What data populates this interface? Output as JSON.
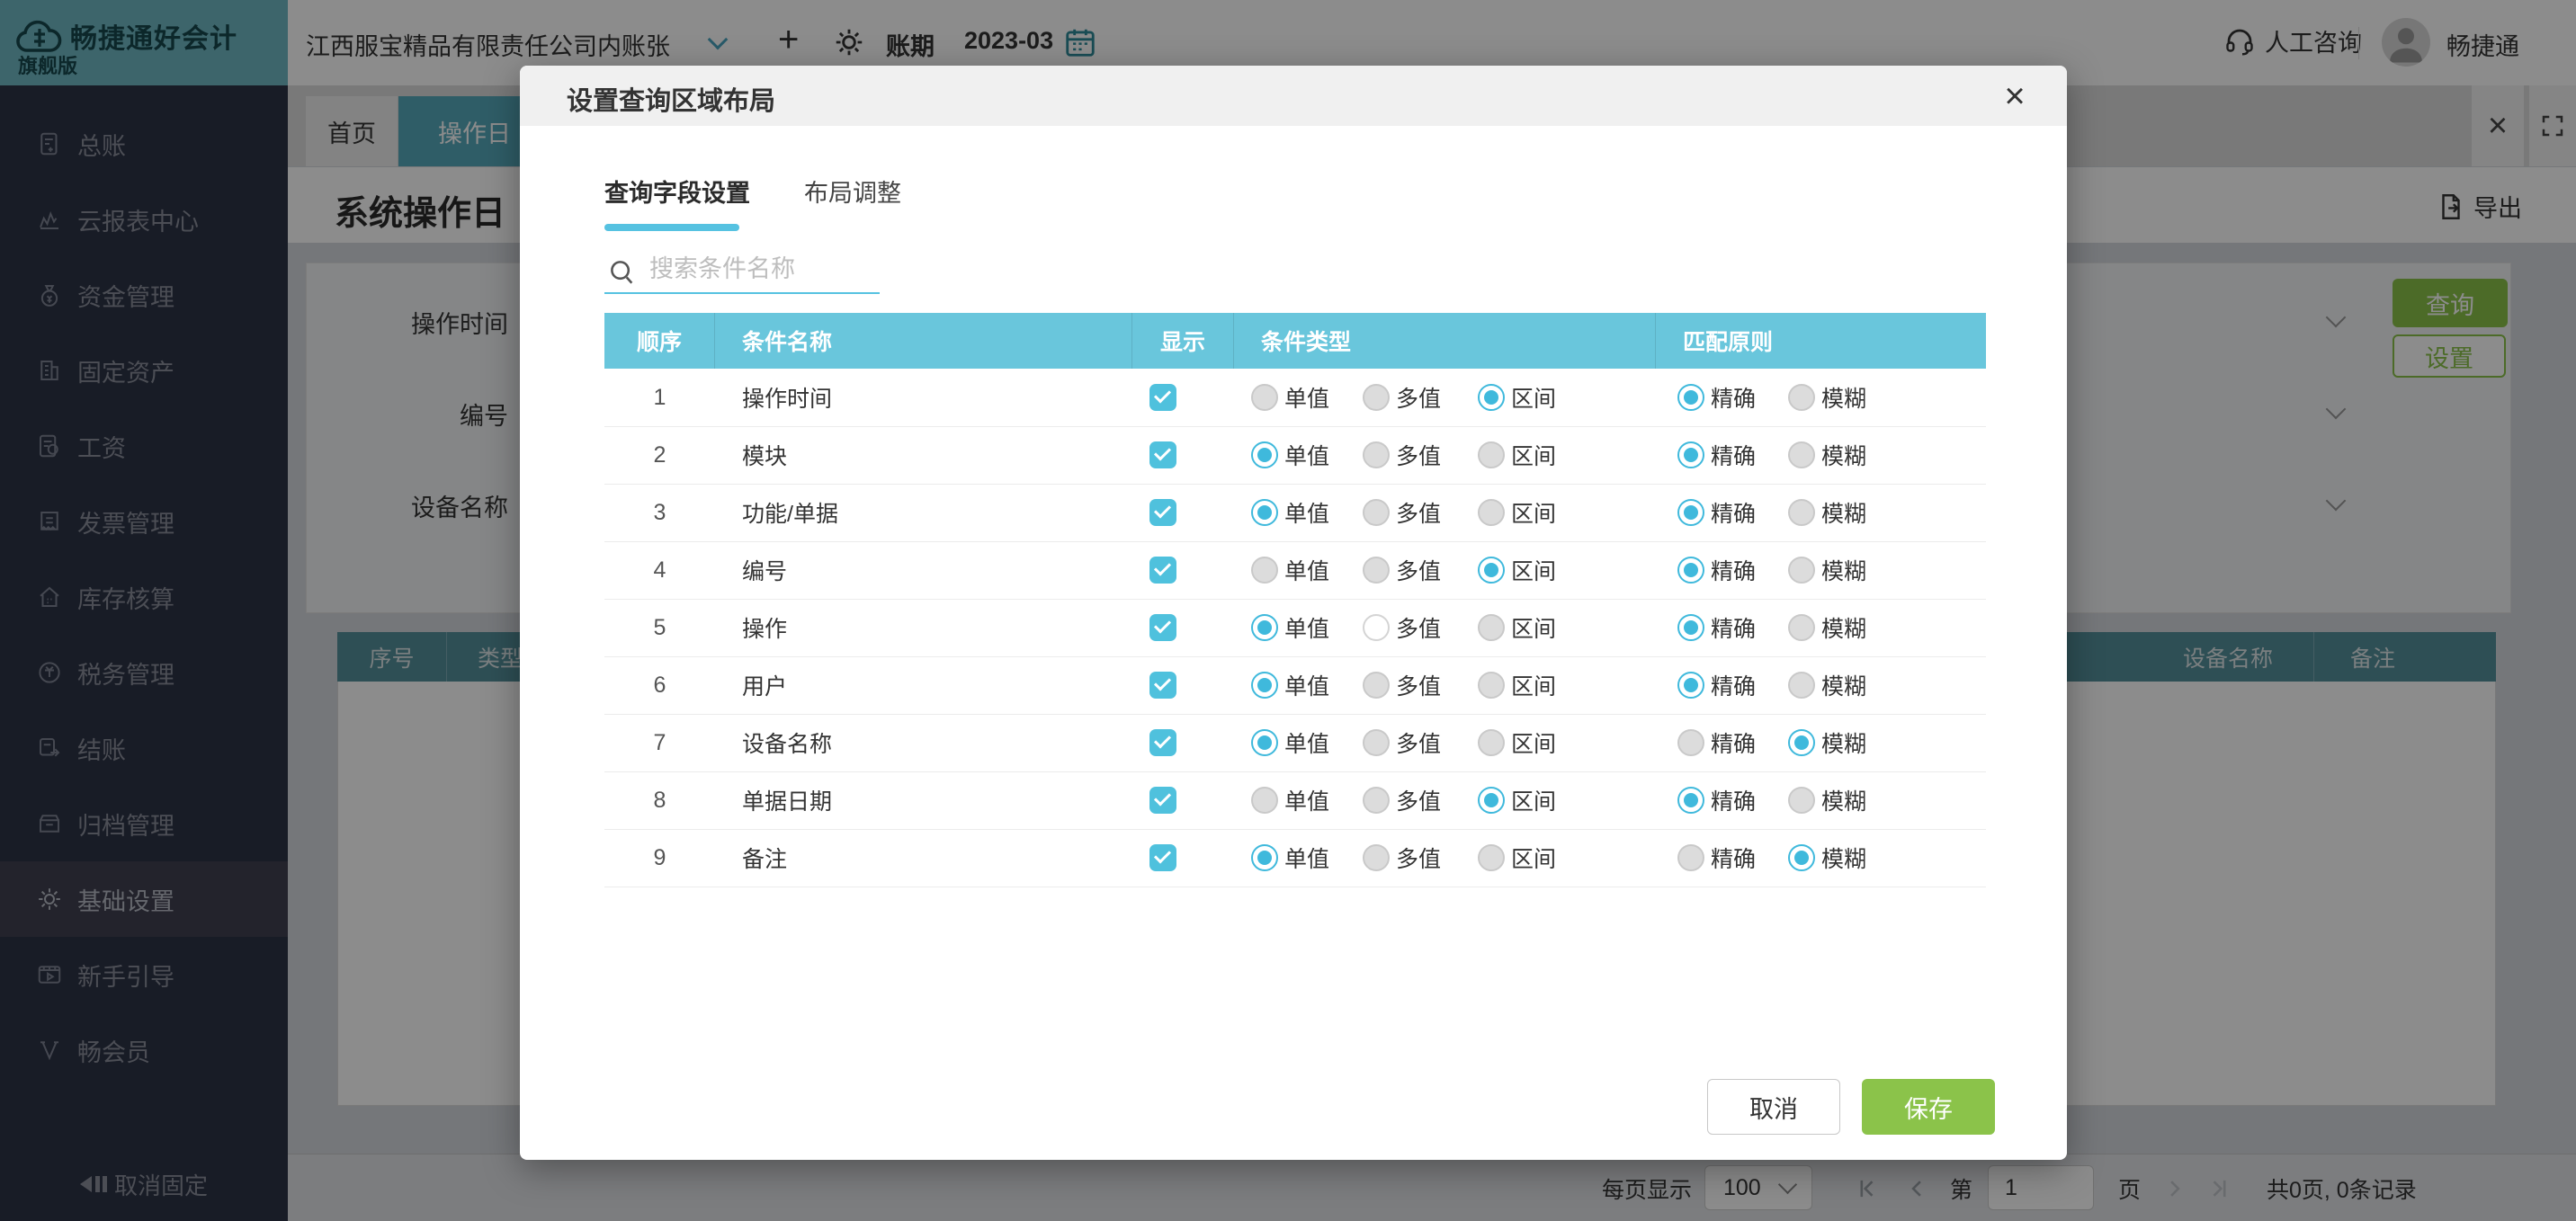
{
  "colors": {
    "accent_blue": "#56c2e1",
    "table_header_blue": "#69c6dc",
    "brand_teal": "#70b9c4",
    "active_tab_teal": "#57aabc",
    "button_green": "#8bc34a",
    "dark_table_header": "#55909c",
    "sidebar_bg": "#2d3345"
  },
  "topbar": {
    "logo_title": "畅捷通好会计",
    "logo_subtitle": "旗舰版",
    "company": "江西服宝精品有限责任公司内账张",
    "plus": "+",
    "period_label": "账期",
    "period_value": "2023-03",
    "support_label": "人工咨询",
    "username": "畅捷通"
  },
  "sidebar": {
    "items": [
      {
        "label": "总账",
        "icon": "ledger-icon"
      },
      {
        "label": "云报表中心",
        "icon": "cloud-report-icon"
      },
      {
        "label": "资金管理",
        "icon": "funds-icon"
      },
      {
        "label": "固定资产",
        "icon": "fixed-assets-icon"
      },
      {
        "label": "工资",
        "icon": "salary-icon"
      },
      {
        "label": "发票管理",
        "icon": "invoice-icon"
      },
      {
        "label": "库存核算",
        "icon": "inventory-icon"
      },
      {
        "label": "税务管理",
        "icon": "tax-icon"
      },
      {
        "label": "结账",
        "icon": "closing-icon"
      },
      {
        "label": "归档管理",
        "icon": "archive-icon"
      },
      {
        "label": "基础设置",
        "icon": "settings-icon",
        "active": true
      },
      {
        "label": "新手引导",
        "icon": "guide-icon"
      },
      {
        "label": "畅会员",
        "icon": "member-icon"
      }
    ],
    "collapse_label": "取消固定"
  },
  "page": {
    "tabs": [
      {
        "label": "首页"
      },
      {
        "label": "操作日",
        "active": true
      }
    ],
    "title": "系统操作日",
    "export_label": "导出",
    "form_labels": [
      "操作时间",
      "编号",
      "设备名称"
    ],
    "query_label": "查询",
    "settings_label": "设置",
    "table_left_headers": [
      "序号",
      "类型"
    ],
    "table_right_headers": [
      "设备名称",
      "备注"
    ],
    "pagination": {
      "per_page_label": "每页显示",
      "per_page_value": "100",
      "page_prefix": "第",
      "page_value": "1",
      "page_suffix": "页",
      "summary": "共0页, 0条记录"
    }
  },
  "modal": {
    "title": "设置查询区域布局",
    "close": "×",
    "tabs": [
      {
        "label": "查询字段设置",
        "active": true
      },
      {
        "label": "布局调整"
      }
    ],
    "search_placeholder": "搜索条件名称",
    "table": {
      "headers": [
        "顺序",
        "条件名称",
        "显示",
        "条件类型",
        "匹配原则"
      ],
      "type_options": [
        "单值",
        "多值",
        "区间"
      ],
      "match_options": [
        "精确",
        "模糊"
      ],
      "rows": [
        {
          "order": "1",
          "name": "操作时间",
          "visible": true,
          "type": "区间",
          "match": "精确"
        },
        {
          "order": "2",
          "name": "模块",
          "visible": true,
          "type": "单值",
          "match": "精确"
        },
        {
          "order": "3",
          "name": "功能/单据",
          "visible": true,
          "type": "单值",
          "match": "精确"
        },
        {
          "order": "4",
          "name": "编号",
          "visible": true,
          "type": "区间",
          "match": "精确"
        },
        {
          "order": "5",
          "name": "操作",
          "visible": true,
          "type": "单值",
          "match": "精确",
          "light_option": "多值"
        },
        {
          "order": "6",
          "name": "用户",
          "visible": true,
          "type": "单值",
          "match": "精确"
        },
        {
          "order": "7",
          "name": "设备名称",
          "visible": true,
          "type": "单值",
          "match": "模糊"
        },
        {
          "order": "8",
          "name": "单据日期",
          "visible": true,
          "type": "区间",
          "match": "精确"
        },
        {
          "order": "9",
          "name": "备注",
          "visible": true,
          "type": "单值",
          "match": "模糊"
        }
      ]
    },
    "cancel_label": "取消",
    "save_label": "保存"
  }
}
